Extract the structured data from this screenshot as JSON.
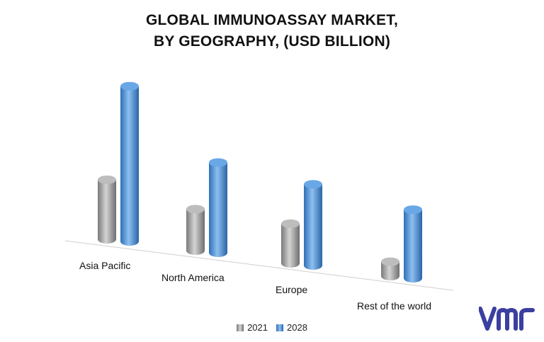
{
  "title_lines": [
    "GLOBAL IMMUNOASSAY MARKET,",
    "BY GEOGRAPHY, (USD BILLION)"
  ],
  "colors": {
    "2021": "#9a9a9a",
    "2028": "#4a8fd6",
    "logo": "#3a3fa0"
  },
  "chart_data": {
    "type": "bar",
    "title": "GLOBAL IMMUNOASSAY MARKET, BY GEOGRAPHY, (USD BILLION)",
    "categories": [
      "Asia Pacific",
      "North America",
      "Europe",
      "Rest of the world"
    ],
    "series": [
      {
        "name": "2021",
        "values": [
          3.3,
          2.3,
          2.2,
          0.8
        ]
      },
      {
        "name": "2028",
        "values": [
          8.6,
          5.0,
          4.5,
          3.8
        ]
      }
    ],
    "xlabel": "",
    "ylabel": "",
    "grid": false,
    "legend_position": "bottom"
  },
  "legend": [
    "2021",
    "2028"
  ],
  "logo_text": "vmr"
}
